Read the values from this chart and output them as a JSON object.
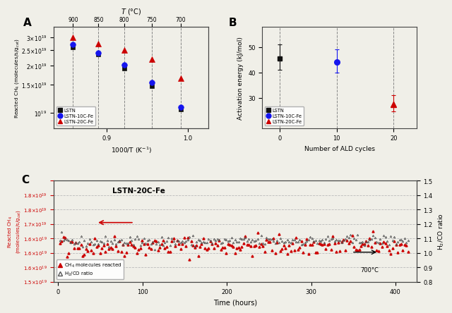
{
  "panel_A": {
    "label": "A",
    "temps_C": [
      900,
      850,
      800,
      750,
      700
    ],
    "inv_T": [
      0.8584,
      0.8897,
      0.9217,
      0.9554,
      0.991
    ],
    "LSTN_y": [
      2.6e+19,
      2.35e+19,
      1.9e+19,
      1.48e+19,
      1.05e+19
    ],
    "LSTN10_y": [
      2.7e+19,
      2.4e+19,
      2.02e+19,
      1.55e+19,
      1.08e+19
    ],
    "LSTN20_y": [
      3e+19,
      2.75e+19,
      2.5e+19,
      2.18e+19,
      1.65e+19
    ],
    "xlabel": "1000/T (K$^{-1}$)",
    "ylabel": "Reacted CH$_4$ (molecules/s/g$_{cat}$)",
    "top_label": "T (°C)",
    "top_ticks": [
      900,
      850,
      800,
      750,
      700
    ],
    "ylim": [
      8e+18,
      3.5e+19
    ],
    "yticks": [
      1e+19,
      1.5e+19,
      2e+19,
      2.5e+19,
      3e+19
    ],
    "ytick_labels": [
      "$10^{19}$",
      "$1.5{\\times}10^{19}$",
      "$2{\\times}10^{19}$",
      "$2.5{\\times}10^{19}$",
      "$3{\\times}10^{19}$"
    ],
    "xlim": [
      0.835,
      1.025
    ],
    "xticks": [
      0.9,
      1.0
    ],
    "xtick_labels": [
      "0.9",
      "1.0"
    ]
  },
  "panel_B": {
    "label": "B",
    "ald_cycles": [
      0,
      10,
      20
    ],
    "LSTN_Ea": 45.5,
    "LSTN10_Ea": 44.0,
    "LSTN20_Ea": 27.5,
    "LSTN_err_up": 5.5,
    "LSTN_err_dn": 4.5,
    "LSTN10_err_up": 5.0,
    "LSTN10_err_dn": 4.0,
    "LSTN20_err_up": 3.5,
    "LSTN20_err_dn": 3.0,
    "xlabel": "Number of ALD cycles",
    "ylabel": "Activation energy (kJ/mol)",
    "ylim": [
      18,
      58
    ],
    "yticks": [
      30,
      40,
      50
    ],
    "xlim": [
      -3,
      24
    ]
  },
  "panel_C": {
    "label": "C",
    "title": "LSTN-20C-Fe",
    "temp_label": "700°C",
    "xlabel": "Time (hours)",
    "ylabel_left": "Reacted CH$_4$\n(molecules/s/g$_{cat}$)",
    "ylabel_right": "H$_2$/CO ratio",
    "CH4_baseline": 1.625e+19,
    "CH4_noise": 1.8e+17,
    "H2CO_baseline": 1.075,
    "H2CO_noise": 0.018,
    "H2CO_drift": 0.015,
    "n_points": 200,
    "time_max": 415,
    "ylim_left": [
      1.5e+19,
      1.85e+19
    ],
    "ylim_right": [
      0.8,
      1.5
    ],
    "yticks_left": [
      1.5e+19,
      1.55e+19,
      1.6e+19,
      1.65e+19,
      1.7e+19,
      1.75e+19,
      1.8e+19,
      1.85e+19
    ],
    "yticks_left_labels": [
      "$1.5{\\times}10^{19}$",
      "$1.6{\\times}10^{19}$",
      "$1.6{\\times}10^{19}$",
      "$1.6{\\times}10^{19}$",
      "$1.7{\\times}10^{19}$",
      "$1.8{\\times}10^{19}$",
      "$1.8{\\times}10^{19}$",
      ""
    ],
    "yticks_right": [
      0.8,
      0.9,
      1.0,
      1.1,
      1.2,
      1.3,
      1.4,
      1.5
    ],
    "color_CH4": "#cc0000",
    "color_H2CO": "#555555"
  },
  "colors": {
    "LSTN": "#111111",
    "LSTN10": "#1515ee",
    "LSTN20": "#cc0000"
  },
  "bg_color": "#f0efe8"
}
